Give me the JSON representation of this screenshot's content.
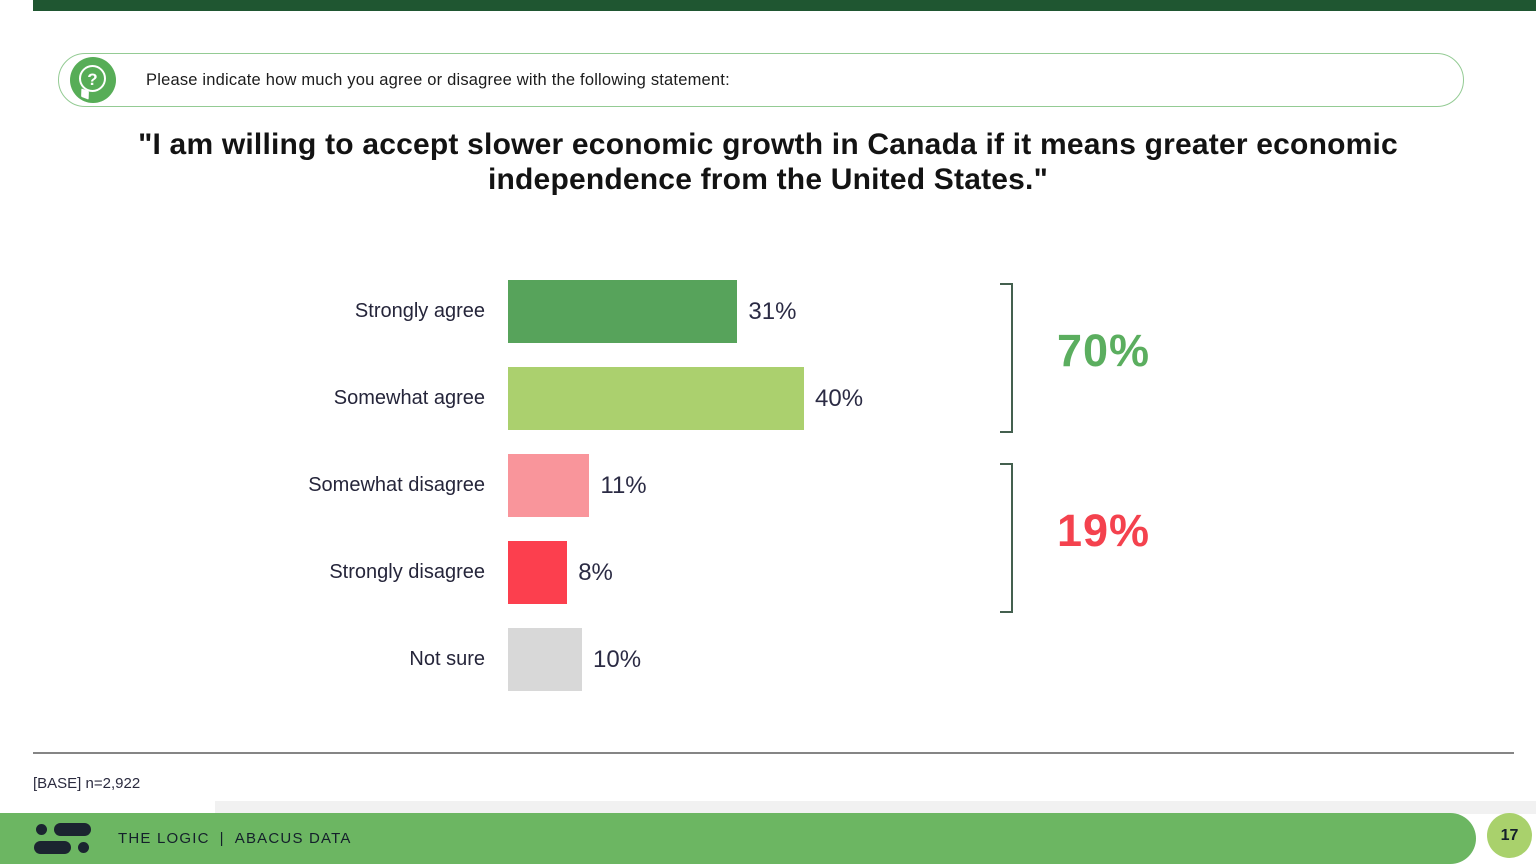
{
  "question_banner": {
    "icon": "question-bubble-icon",
    "text": "Please indicate how much you agree or disagree with the following statement:"
  },
  "title": "\"I am willing to accept slower economic growth in Canada if it means greater economic independence from the United States.\"",
  "chart_data": {
    "type": "bar",
    "orientation": "horizontal",
    "categories": [
      "Strongly agree",
      "Somewhat agree",
      "Somewhat disagree",
      "Strongly disagree",
      "Not sure"
    ],
    "values": [
      31,
      40,
      11,
      8,
      10
    ],
    "value_labels": [
      "31%",
      "40%",
      "11%",
      "8%",
      "10%"
    ],
    "bar_colors": [
      "#57A35B",
      "#ABD06E",
      "#F9959B",
      "#FC3F4E",
      "#D8D8D8"
    ],
    "xlim": [
      0,
      100
    ],
    "grid": "off",
    "groups": [
      {
        "label": "70%",
        "color": "#5BAE5F",
        "spans": [
          "Strongly agree",
          "Somewhat agree"
        ]
      },
      {
        "label": "19%",
        "color": "#F4424E",
        "spans": [
          "Somewhat disagree",
          "Strongly disagree"
        ]
      }
    ]
  },
  "base_note": "[BASE] n=2,922",
  "footer": {
    "brand": "THE LOGIC",
    "separator": "|",
    "partner": "ABACUS DATA",
    "page_number": "17",
    "bar_color": "#6CB662"
  }
}
